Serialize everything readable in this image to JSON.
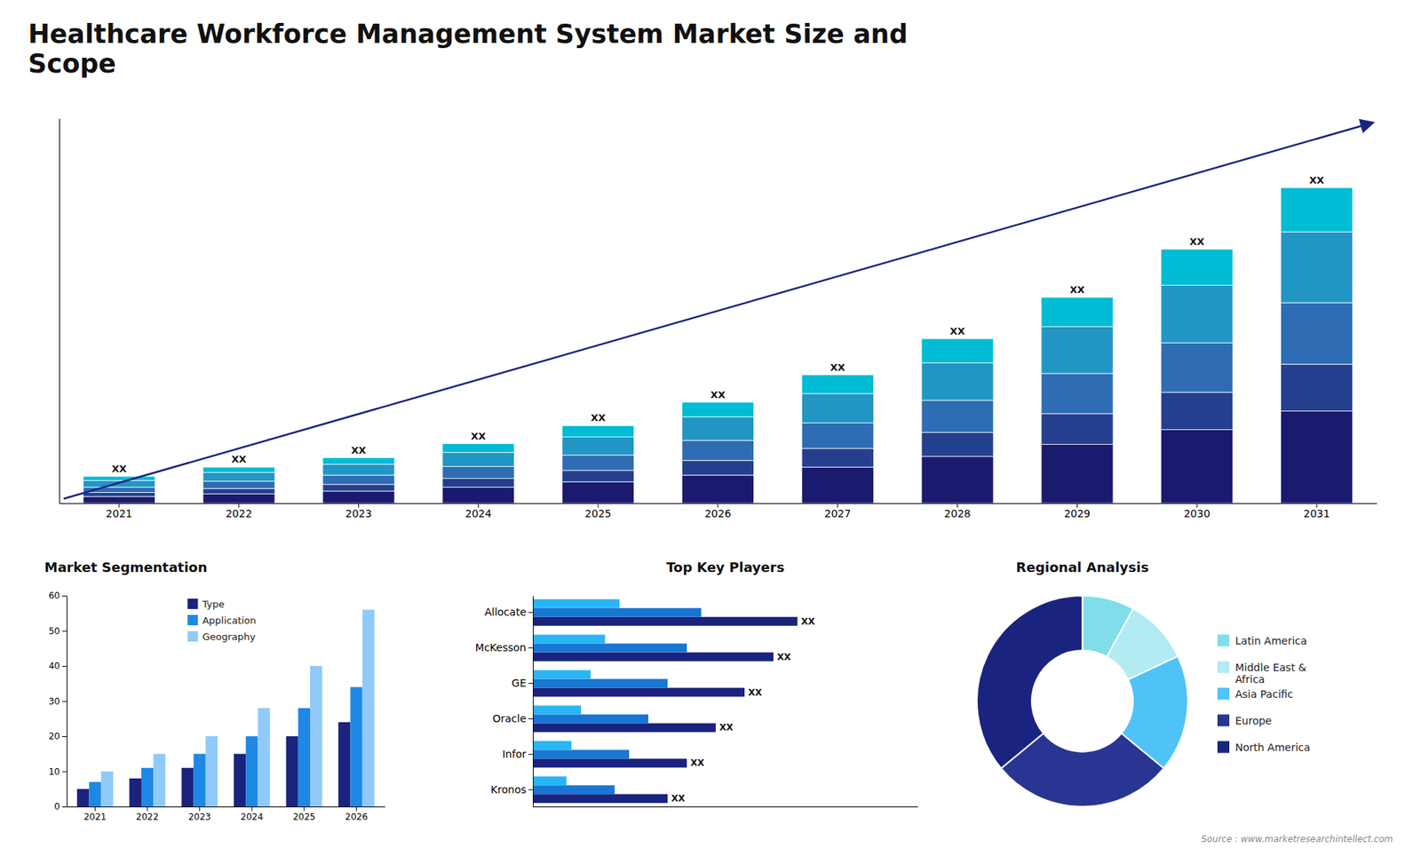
{
  "chart_data": [
    {
      "type": "bar",
      "title": "Healthcare Workforce Management System Market Size and\nScope",
      "stacked": true,
      "categories": [
        "2021",
        "2022",
        "2023",
        "2024",
        "2025",
        "2026",
        "2027",
        "2028",
        "2029",
        "2030",
        "2031"
      ],
      "series": [
        {
          "color": "#1a1a6e",
          "values": [
            0.5,
            0.7,
            0.9,
            1.2,
            1.6,
            2.1,
            2.7,
            3.5,
            4.4,
            5.5,
            6.9
          ]
        },
        {
          "color": "#253f8f",
          "values": [
            0.3,
            0.4,
            0.5,
            0.65,
            0.85,
            1.1,
            1.4,
            1.8,
            2.3,
            2.8,
            3.5
          ]
        },
        {
          "color": "#2e6db4",
          "values": [
            0.4,
            0.55,
            0.7,
            0.9,
            1.15,
            1.5,
            1.9,
            2.4,
            3.0,
            3.7,
            4.6
          ]
        },
        {
          "color": "#2196c4",
          "values": [
            0.5,
            0.65,
            0.8,
            1.05,
            1.35,
            1.75,
            2.2,
            2.8,
            3.5,
            4.3,
            5.3
          ]
        },
        {
          "color": "#00bcd4",
          "values": [
            0.3,
            0.4,
            0.5,
            0.65,
            0.85,
            1.1,
            1.4,
            1.8,
            2.2,
            2.7,
            3.3
          ]
        }
      ],
      "ylim": [
        0,
        28.792
      ],
      "tick_labels": "x",
      "annotations": [
        "XX",
        "XX",
        "XX",
        "XX",
        "XX",
        "XX",
        "XX",
        "XX",
        "XX",
        "XX",
        "XX"
      ]
    },
    {
      "type": "bar",
      "title": "Market Segmentation",
      "categories": [
        "2021",
        "2022",
        "2023",
        "2024",
        "2025",
        "2026"
      ],
      "series": [
        {
          "name": "Type",
          "color": "#1a237e",
          "values": [
            5,
            8,
            11,
            15,
            20,
            24
          ]
        },
        {
          "name": "Application",
          "color": "#1e88e5",
          "values": [
            7,
            11,
            15,
            20,
            28,
            34
          ]
        },
        {
          "name": "Geography",
          "color": "#90caf9",
          "values": [
            10,
            15,
            20,
            28,
            40,
            56
          ]
        }
      ],
      "ylim": [
        0,
        60
      ],
      "yticks": [
        0,
        10,
        20,
        30,
        40,
        50,
        60
      ],
      "legend": "top"
    },
    {
      "type": "bar",
      "orientation": "horizontal",
      "title": "Top Key Players",
      "categories": [
        "Allocate",
        "McKesson",
        "GE",
        "Oracle",
        "Infor",
        "Kronos"
      ],
      "series": [
        {
          "color": "#1a237e",
          "values": [
            0.55,
            0.5,
            0.44,
            0.38,
            0.32,
            0.28
          ],
          "value_labels": [
            "XX",
            "XX",
            "XX",
            "XX",
            "XX",
            "XX"
          ]
        },
        {
          "color": "#1976d2",
          "values": [
            0.35,
            0.32,
            0.28,
            0.24,
            0.2,
            0.17
          ]
        },
        {
          "color": "#29b6f6",
          "values": [
            0.18,
            0.15,
            0.12,
            0.1,
            0.08,
            0.07
          ]
        }
      ],
      "xlim": [
        0,
        0.8
      ],
      "tick_labels": "y"
    },
    {
      "type": "donut",
      "title": "Regional Analysis",
      "categories": [
        "Latin America",
        "Middle East &\nAfrica",
        "Asia Pacific",
        "Europe",
        "North America"
      ],
      "values": [
        8,
        10,
        18,
        28,
        36
      ],
      "colors": [
        "#80deea",
        "#b2ebf2",
        "#4fc3f7",
        "#283593",
        "#1a237e"
      ],
      "legend": "right",
      "annotations": [
        "Source : www.marketresearchintellect.com"
      ]
    }
  ]
}
